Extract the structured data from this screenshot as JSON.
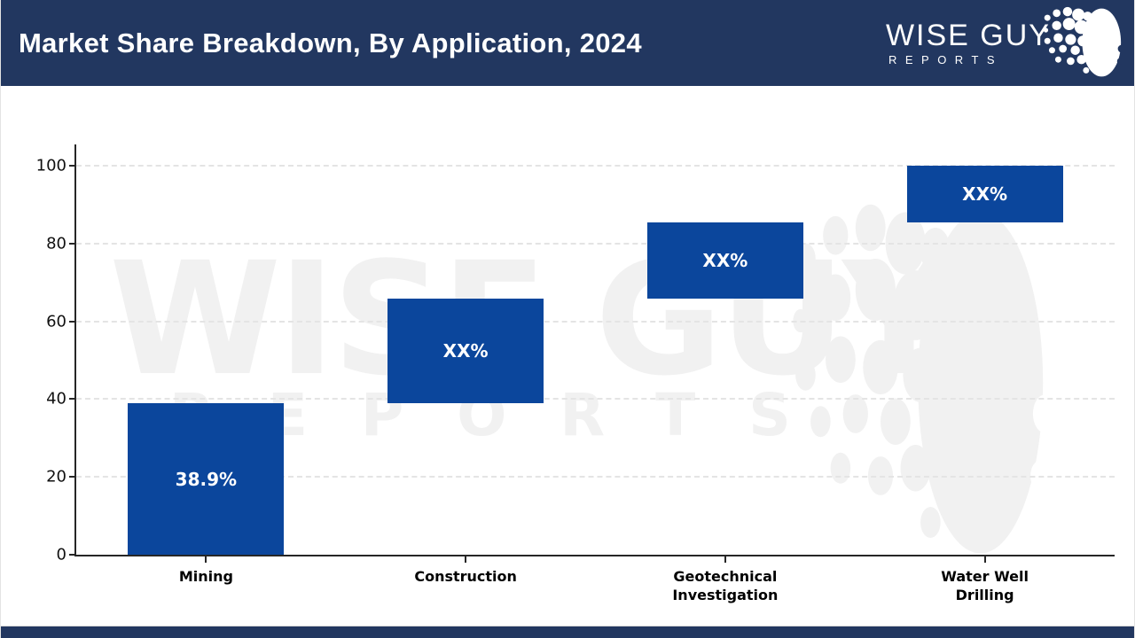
{
  "header": {
    "title": "Market Share Breakdown, By Application, 2024",
    "logo": {
      "line1": "WISE GUY",
      "line2": "REPORTS"
    }
  },
  "watermark": {
    "line1": "WISE GUY",
    "line2": "REPORTS"
  },
  "colors": {
    "navy": "#223760",
    "bar_blue": "#0b469c",
    "grid": "#e4e4e4",
    "axis": "#262626",
    "watermark_gray": "#f1f1f1"
  },
  "chart_data": {
    "type": "bar",
    "subtype": "waterfall",
    "title": "Market Share Breakdown, By Application, 2024",
    "xlabel": "",
    "ylabel": "",
    "grid": "dashed-horizontal",
    "legend": "none",
    "ylim": [
      0,
      105
    ],
    "yticks": [
      0,
      20,
      40,
      60,
      80,
      100
    ],
    "categories": [
      "Mining",
      "Construction",
      "Geotechnical Investigation",
      "Water Well Drilling"
    ],
    "segments": [
      {
        "category_lines": [
          "Mining"
        ],
        "start": 0,
        "end": 38.9,
        "label": "38.9%"
      },
      {
        "category_lines": [
          "Construction"
        ],
        "start": 38.9,
        "end": 65.8,
        "label": "XX%"
      },
      {
        "category_lines": [
          "Geotechnical",
          "Investigation"
        ],
        "start": 65.8,
        "end": 85.4,
        "label": "XX%"
      },
      {
        "category_lines": [
          "Water Well",
          "Drilling"
        ],
        "start": 85.4,
        "end": 100,
        "label": "XX%"
      }
    ]
  }
}
